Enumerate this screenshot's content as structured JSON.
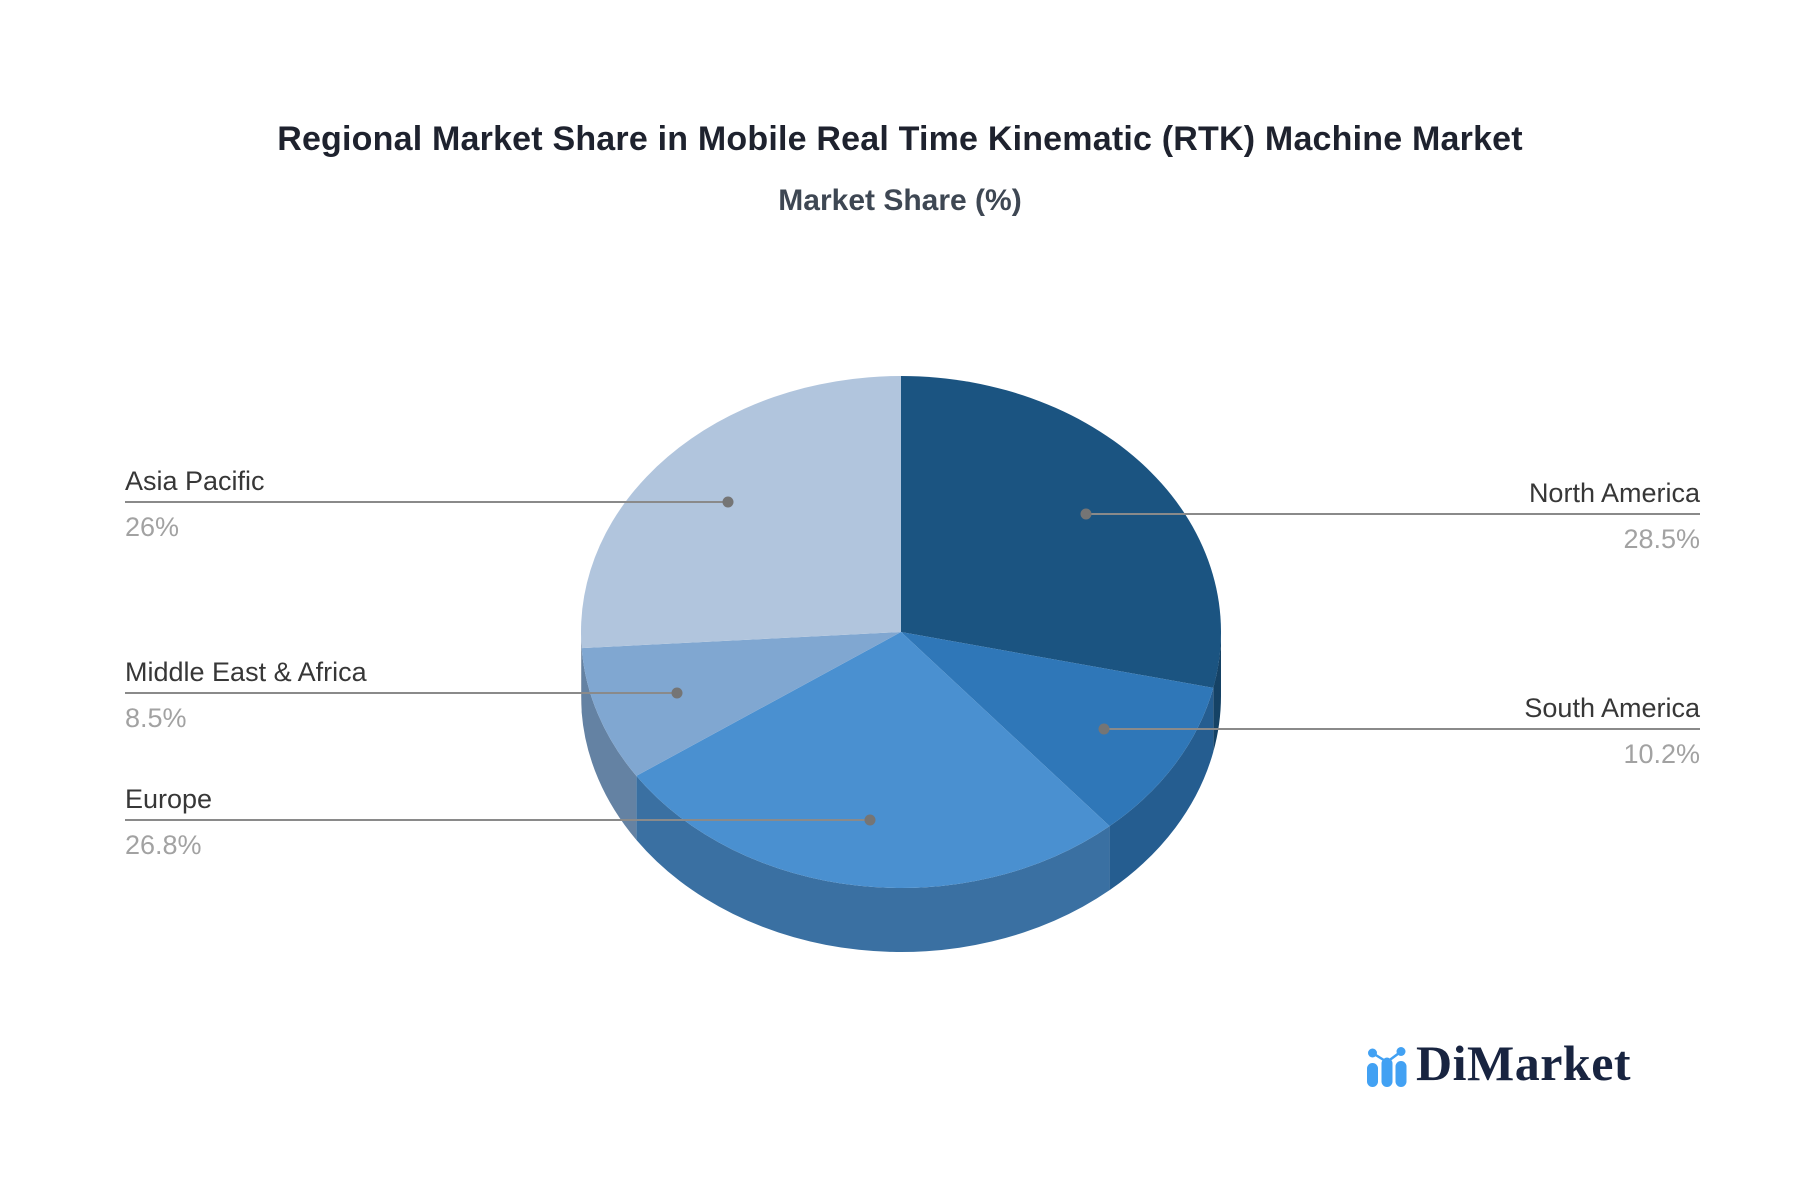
{
  "title": "Regional Market Share in Mobile Real Time Kinematic (RTK) Machine Market",
  "subtitle": "Market Share (%)",
  "chart_data": {
    "type": "pie",
    "style": "3d",
    "unit": "%",
    "direction": "clockwise",
    "start_angle": "12-o'clock",
    "legend_position": "leader-line-labels",
    "series": [
      {
        "label": "North America",
        "value": 28.5,
        "display": "28.5%",
        "color": "#1b5481",
        "side": "right"
      },
      {
        "label": "South America",
        "value": 10.2,
        "display": "10.2%",
        "color": "#2f77b8",
        "side": "right"
      },
      {
        "label": "Europe",
        "value": 26.8,
        "display": "26.8%",
        "color": "#4a90d0",
        "side": "left"
      },
      {
        "label": "Middle East & Africa",
        "value": 8.5,
        "display": "8.5%",
        "color": "#80a7d1",
        "side": "left"
      },
      {
        "label": "Asia Pacific",
        "value": 26,
        "display": "26%",
        "color": "#b1c5dd",
        "side": "left"
      }
    ],
    "leader_line_color": "#8a8a8a",
    "label_color": "#373737",
    "value_color": "#a2a2a2"
  },
  "logo": {
    "text": "DiMarket",
    "icon": "bar-chart-trendline-icon",
    "icon_color": "#42a1f3",
    "text_color": "#182440"
  }
}
